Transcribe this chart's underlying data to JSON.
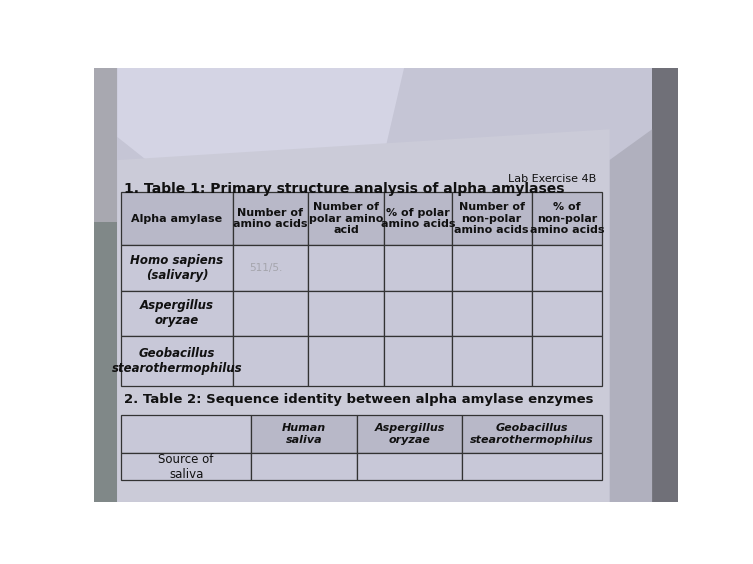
{
  "bg_top": "#b0b0c0",
  "bg_bottom": "#909098",
  "bg_right": "#808090",
  "page_color": "#c8c8d8",
  "page_color_light": "#d8d8e8",
  "table_bg": "#c0c0d0",
  "table_header_bg": "#b0b0c0",
  "cell_border": "#444444",
  "text_color": "#111111",
  "label_top_right": "Lab Exercise 4B",
  "title1": "1. Table 1: Primary structure analysis of alpha amylases",
  "table1_headers": [
    "Alpha amylase",
    "Number of\namino acids",
    "Number of\npolar amino\nacid",
    "% of polar\namino acids",
    "Number of\nnon-polar\namino acids",
    "% of\nnon-polar\namino acids"
  ],
  "table1_rows": [
    [
      "Homo sapiens\n(salivary)",
      "",
      "",
      "",
      "",
      ""
    ],
    [
      "Aspergillus\noryzae",
      "",
      "",
      "",
      "",
      ""
    ],
    [
      "Geobacillus\nstearothermophilus",
      "",
      "",
      "",
      "",
      ""
    ]
  ],
  "title2": "2. Table 2: Sequence identity between alpha amylase enzymes",
  "table2_partial_headers": [
    "Human\nsaliva",
    "Aspergillus\noryzae",
    "Geobacillus\nstearothermophilus"
  ],
  "table2_row_label": "Source of\nsaliva",
  "pencil_text": "511/5.",
  "font_size_label": 8,
  "font_size_title1": 10,
  "font_size_title2": 9.5,
  "font_size_header": 8,
  "font_size_cell": 8.5
}
